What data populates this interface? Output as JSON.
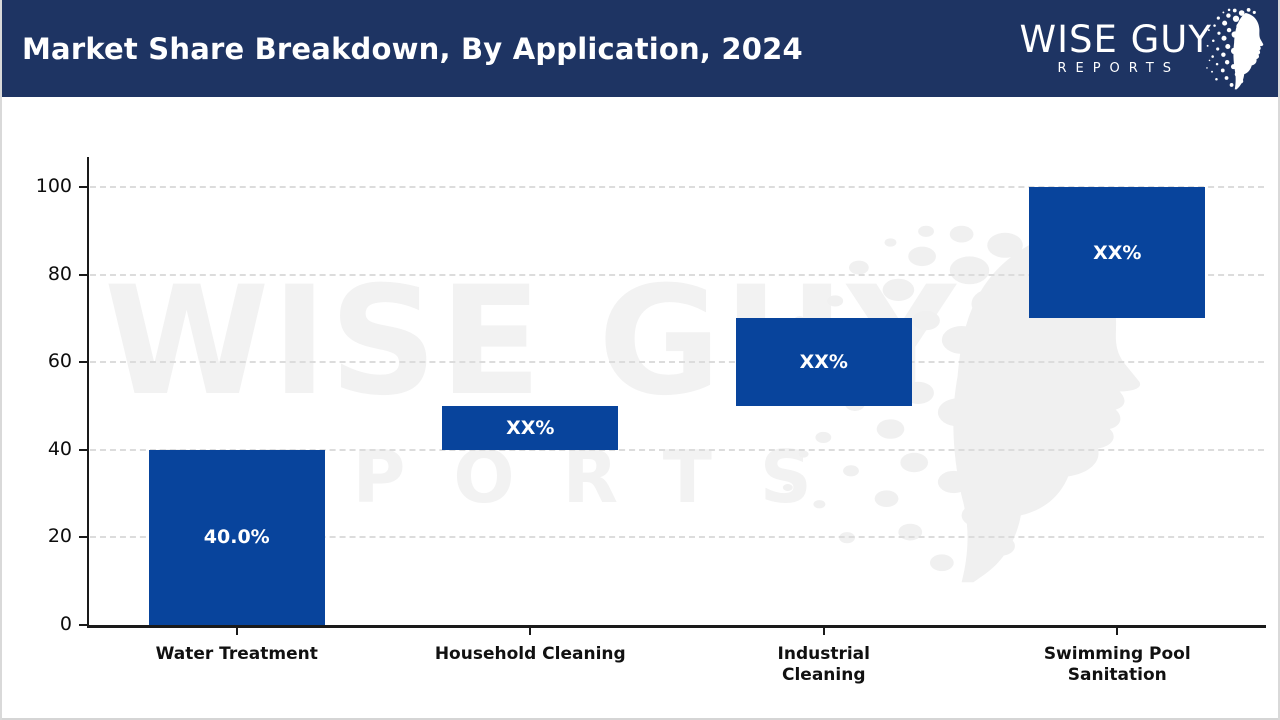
{
  "header": {
    "title": "Market Share Breakdown, By Application, 2024",
    "bg_color": "#1e3463",
    "logo": {
      "line1": "WISE GUY",
      "line2": "REPORTS"
    }
  },
  "watermark": {
    "line1": "WISE GUY",
    "line2": "REPORTS"
  },
  "chart_data": {
    "type": "bar",
    "variant": "waterfall",
    "title": "Market Share Breakdown, By Application, 2024",
    "categories": [
      "Water Treatment",
      "Household Cleaning",
      "Industrial Cleaning",
      "Swimming Pool Sanitation"
    ],
    "values": [
      40,
      10,
      20,
      30
    ],
    "segments": [
      {
        "category": "Water Treatment",
        "label_lines": [
          "Water Treatment"
        ],
        "start": 0,
        "end": 40,
        "bar_label": "40.0%"
      },
      {
        "category": "Household Cleaning",
        "label_lines": [
          "Household Cleaning"
        ],
        "start": 40,
        "end": 50,
        "bar_label": "XX%"
      },
      {
        "category": "Industrial Cleaning",
        "label_lines": [
          "Industrial",
          "Cleaning"
        ],
        "start": 50,
        "end": 70,
        "bar_label": "XX%"
      },
      {
        "category": "Swimming Pool Sanitation",
        "label_lines": [
          "Swimming Pool",
          "Sanitation"
        ],
        "start": 70,
        "end": 100,
        "bar_label": "XX%"
      }
    ],
    "xlabel": "",
    "ylabel": "",
    "ylim": [
      0,
      100
    ],
    "yticks": [
      0,
      20,
      40,
      60,
      80,
      100
    ],
    "grid": "horizontal-dashed",
    "legend": "none",
    "bar_color": "#08449c",
    "bar_label_color": "#ffffff",
    "axis_color": "#1a1a1a",
    "gridline_color": "#dcdcdc"
  }
}
